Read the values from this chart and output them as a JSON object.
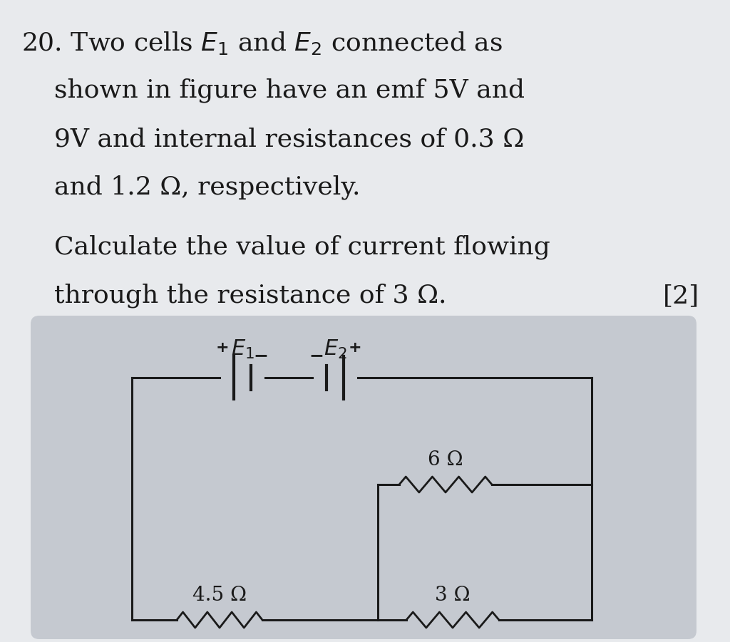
{
  "bg_color_page": "#dde0e5",
  "bg_color_text": "#e8eaed",
  "bg_color_circuit": "#c5c9d0",
  "text_color": "#1a1a1a",
  "line_color": "#1a1a1a",
  "line1": "20. Two cells $E_1$ and $E_2$ connected as",
  "line2": "    shown in figure have an emf 5V and",
  "line3": "    9V and internal resistances of 0.3 Ω",
  "line4": "    and 1.2 Ω, respectively.",
  "line5": "    Calculate the value of current flowing",
  "line6": "    through the resistance of 3 Ω.",
  "marks": "[2]",
  "R1_label": "4.5 Ω",
  "R2_label": "6 Ω",
  "R3_label": "3 Ω",
  "E1_label": "$E_1$",
  "E2_label": "$E_2$",
  "font_size_text": 26,
  "font_size_circuit": 20
}
